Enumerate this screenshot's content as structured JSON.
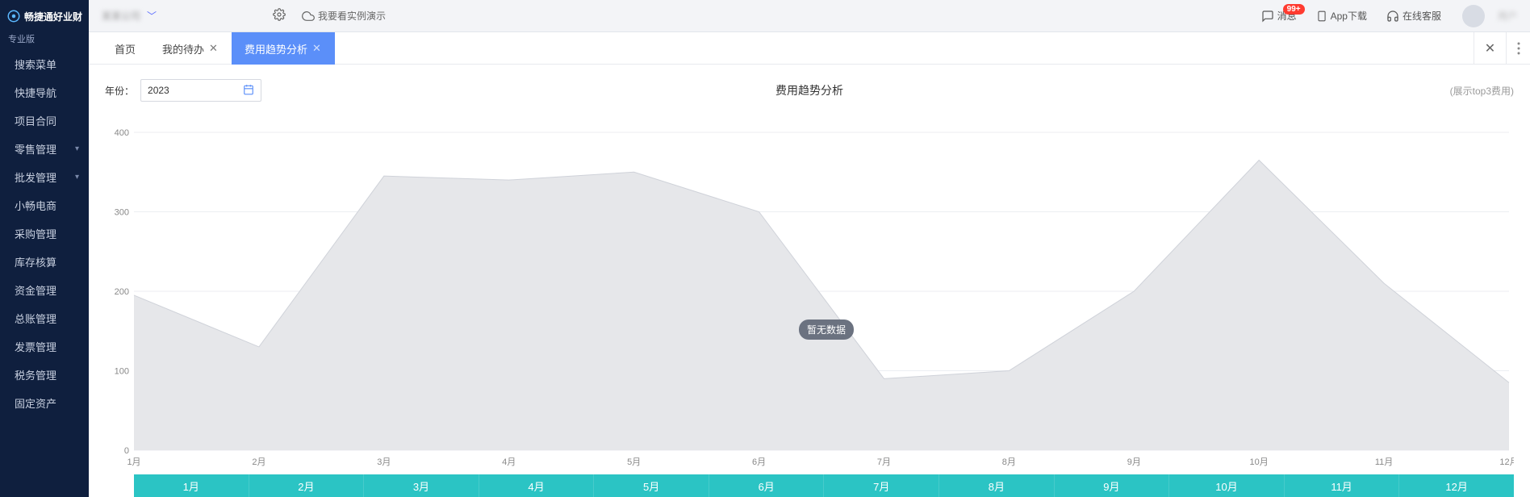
{
  "brand": {
    "name": "畅捷通好业财",
    "edition": "专业版"
  },
  "sidebar": {
    "items": [
      {
        "label": "搜索菜单",
        "expandable": false
      },
      {
        "label": "快捷导航",
        "expandable": false
      },
      {
        "label": "项目合同",
        "expandable": false
      },
      {
        "label": "零售管理",
        "expandable": true
      },
      {
        "label": "批发管理",
        "expandable": true
      },
      {
        "label": "小畅电商",
        "expandable": false
      },
      {
        "label": "采购管理",
        "expandable": false
      },
      {
        "label": "库存核算",
        "expandable": false
      },
      {
        "label": "资金管理",
        "expandable": false
      },
      {
        "label": "总账管理",
        "expandable": false
      },
      {
        "label": "发票管理",
        "expandable": false
      },
      {
        "label": "税务管理",
        "expandable": false
      },
      {
        "label": "固定资产",
        "expandable": false
      }
    ]
  },
  "topbar": {
    "org_name": "某某公司",
    "demo_label": "我要看实例演示",
    "message_label": "消息",
    "message_badge": "99+",
    "app_label": "App下载",
    "service_label": "在线客服",
    "user_name": "用户"
  },
  "tabs": {
    "items": [
      {
        "label": "首页",
        "closable": false,
        "active": false
      },
      {
        "label": "我的待办",
        "closable": true,
        "active": false
      },
      {
        "label": "费用趋势分析",
        "closable": true,
        "active": true
      }
    ]
  },
  "filter": {
    "year_label": "年份：",
    "year_value": "2023"
  },
  "chart": {
    "title": "费用趋势分析",
    "note": "(展示top3费用)",
    "type": "area",
    "tooltip_text": "暂无数据",
    "x_labels": [
      "1月",
      "2月",
      "3月",
      "4月",
      "5月",
      "6月",
      "7月",
      "8月",
      "9月",
      "10月",
      "11月",
      "12月"
    ],
    "y_ticks": [
      0,
      100,
      200,
      300,
      400
    ],
    "ylim": [
      0,
      400
    ],
    "values": [
      195,
      130,
      345,
      340,
      350,
      300,
      90,
      100,
      200,
      365,
      210,
      85
    ],
    "fill_color": "#e6e7ea",
    "stroke_color": "#cfd2d9",
    "grid_color": "#eceef2",
    "axis_text_color": "#888888",
    "background_color": "#ffffff",
    "footer_bg": "#2bc4c4",
    "footer_text_color": "#ffffff",
    "tooltip_bg": "#6b7280"
  }
}
